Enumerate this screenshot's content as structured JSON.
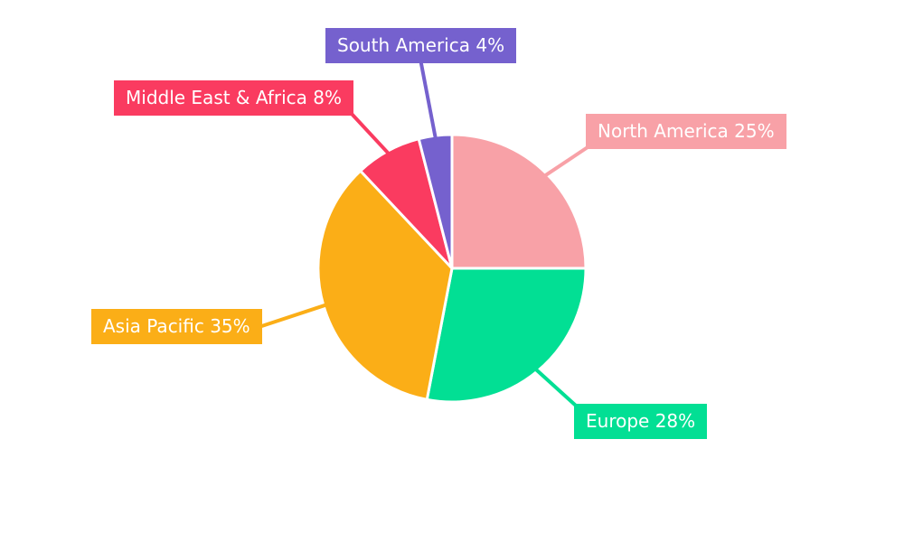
{
  "chart_data": {
    "type": "pie",
    "unit": "%",
    "start_angle_deg": 0,
    "direction": "clockwise",
    "legend": "callout-labels",
    "background_color": "#ffffff",
    "slice_gap_color": "#ffffff",
    "slices": [
      {
        "id": "north-america",
        "label": "North America",
        "value": 25,
        "display": "North America 25%",
        "color": "#F8A1A7"
      },
      {
        "id": "europe",
        "label": "Europe",
        "value": 28,
        "display": "Europe 28%",
        "color": "#02DF94"
      },
      {
        "id": "asia-pacific",
        "label": "Asia Pacific",
        "value": 35,
        "display": "Asia Pacific 35%",
        "color": "#FBAE17"
      },
      {
        "id": "middle-east-africa",
        "label": "Middle East & Africa",
        "value": 8,
        "display": "Middle East & Africa 8%",
        "color": "#FA3B60"
      },
      {
        "id": "south-america",
        "label": "South America",
        "value": 4,
        "display": "South America 4%",
        "color": "#7561CE"
      }
    ]
  }
}
